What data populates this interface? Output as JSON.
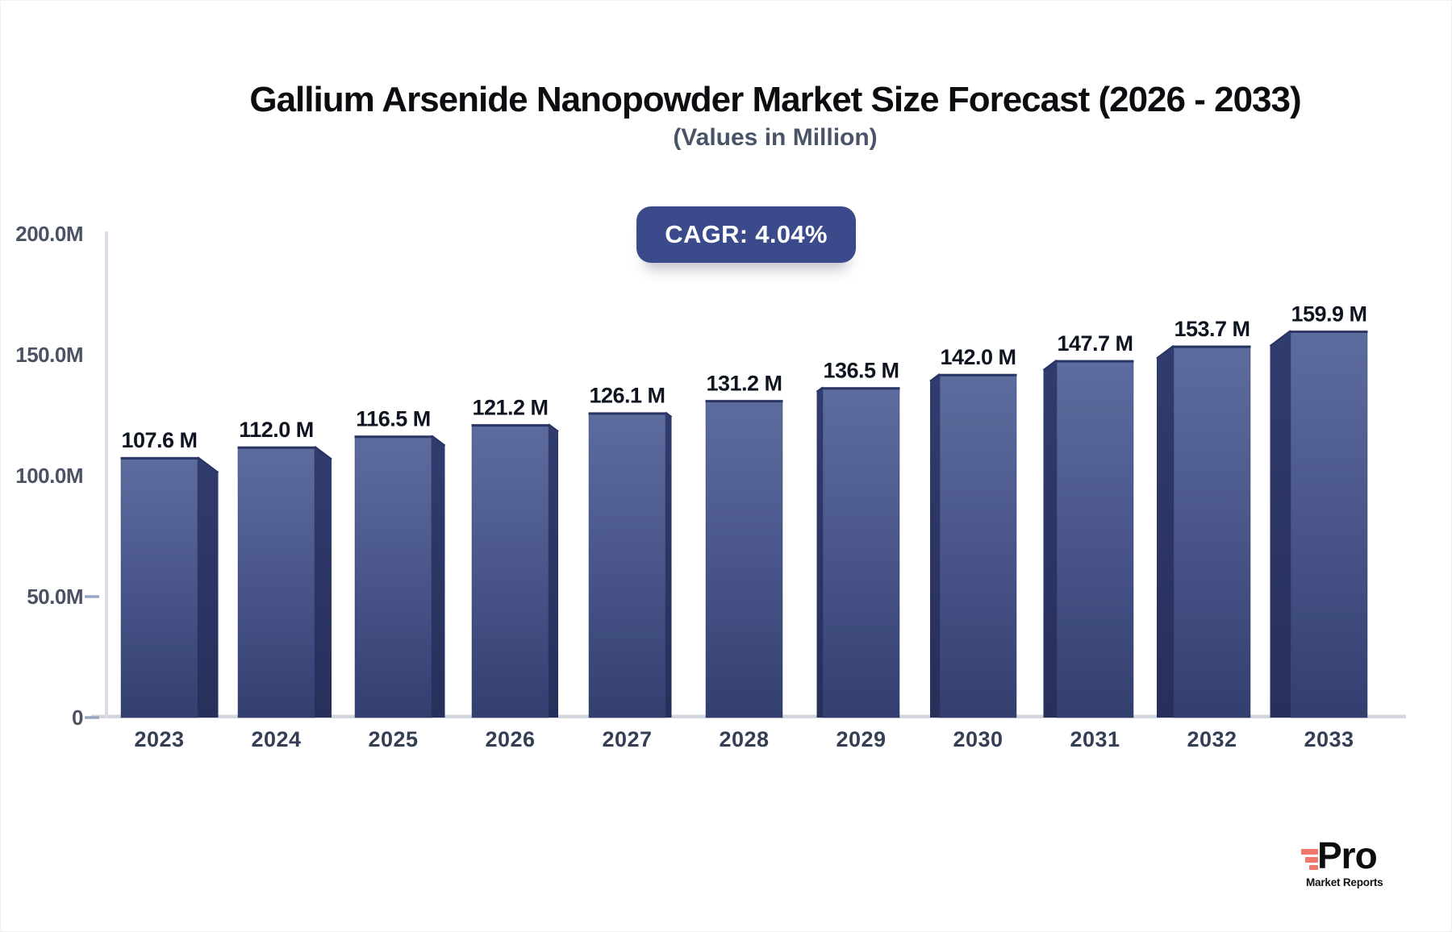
{
  "header": {
    "title": "Gallium Arsenide Nanopowder Market Size Forecast (2026 - 2033)",
    "subtitle": "(Values in Million)",
    "cagr_label": "CAGR: 4.04%"
  },
  "logo": {
    "brand": "Pro",
    "tagline": "Market Reports",
    "accent_color": "#F4776B"
  },
  "chart_data": {
    "type": "bar",
    "title": "Gallium Arsenide Nanopowder Market Size Forecast (2026 - 2033)",
    "subtitle": "(Values in Million)",
    "cagr_percent": 4.04,
    "unit": "M (Million)",
    "bar_style": "3d-perspective",
    "grid": false,
    "legend": null,
    "categories": [
      "2023",
      "2024",
      "2025",
      "2026",
      "2027",
      "2028",
      "2029",
      "2030",
      "2031",
      "2032",
      "2033"
    ],
    "values": [
      107.6,
      112.0,
      116.5,
      121.2,
      126.1,
      131.2,
      136.5,
      142.0,
      147.7,
      153.7,
      159.9
    ],
    "value_labels": [
      "107.6 M",
      "112.0 M",
      "116.5 M",
      "121.2 M",
      "126.1 M",
      "131.2 M",
      "136.5 M",
      "142.0 M",
      "147.7 M",
      "153.7 M",
      "159.9 M"
    ],
    "ylim": [
      0,
      200
    ],
    "yticks": [
      {
        "label": "200.0M",
        "value": 200,
        "dash": false
      },
      {
        "label": "150.0M",
        "value": 150,
        "dash": false
      },
      {
        "label": "100.0M",
        "value": 100,
        "dash": false
      },
      {
        "label": "50.0M",
        "value": 50,
        "dash": true
      },
      {
        "label": "0",
        "value": 0,
        "dash": true
      }
    ],
    "colors": {
      "bar_top": "#5D6C9E",
      "bar_mid": "#4A568A",
      "bar_bottom": "#323F6F",
      "bar_side_top": "#313C6E",
      "bar_side_bottom": "#272F5B",
      "bar_edge": "#2A3564",
      "badge_bg": "#3A4A8B",
      "badge_text": "#FFFFFF",
      "axis_line": "#DADDE5",
      "baseline": "#D3D6DE",
      "tick_dash": "#96A6C3",
      "ytick_text": "#4A5264",
      "xtick_text": "#343E54",
      "value_text": "#0E1420",
      "title_text": "#0C0D10",
      "subtitle_text": "#4A5468"
    }
  }
}
